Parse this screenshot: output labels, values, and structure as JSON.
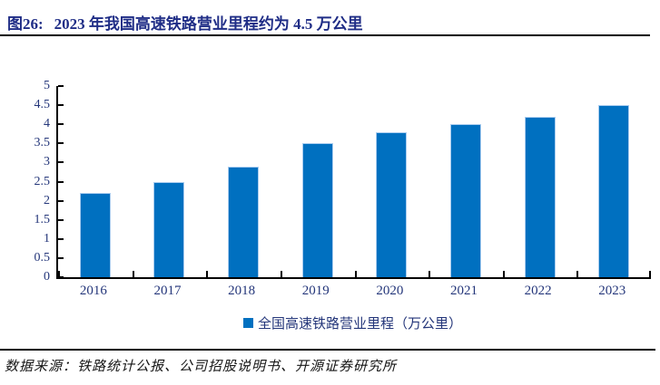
{
  "header": {
    "figure_label": "图26:",
    "title": "2023 年我国高速铁路营业里程约为 4.5 万公里"
  },
  "chart_data": {
    "type": "bar",
    "categories": [
      "2016",
      "2017",
      "2018",
      "2019",
      "2020",
      "2021",
      "2022",
      "2023"
    ],
    "values": [
      2.2,
      2.5,
      2.9,
      3.5,
      3.8,
      4.0,
      4.2,
      4.5
    ],
    "series_name": "全国高速铁路营业里程（万公里）",
    "title": "2023 年我国高速铁路营业里程约为 4.5 万公里",
    "xlabel": "",
    "ylabel": "",
    "ylim": [
      0,
      5
    ],
    "ytick_step": 0.5,
    "grid": false,
    "legend_position": "bottom"
  },
  "legend": {
    "label": "全国高速铁路营业里程（万公里）"
  },
  "footer": {
    "source": "数据来源：铁路统计公报、公司招股说明书、开源证券研究所"
  },
  "colors": {
    "title_text": "#1F2D86",
    "axis_text": "#24367A",
    "bar": "#0070C0",
    "bar_edge": "#A9CCEF",
    "line": "#000000"
  }
}
